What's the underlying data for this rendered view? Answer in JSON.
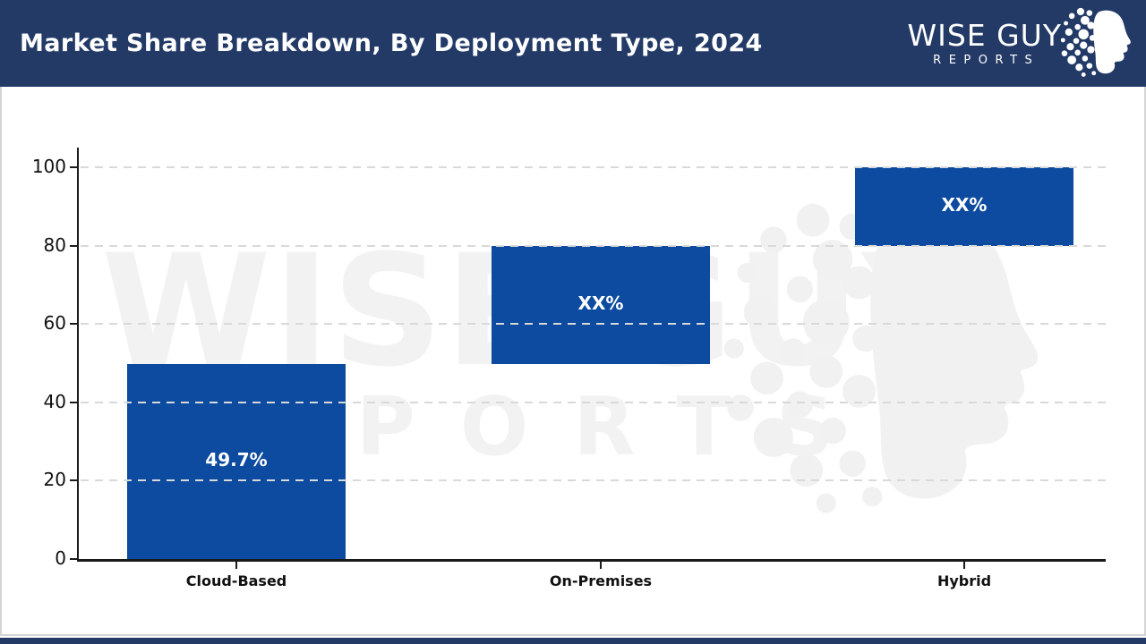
{
  "header": {
    "title": "Market Share Breakdown, By Deployment Type, 2024",
    "logo": {
      "brand_line1": "WISE GUY",
      "brand_line2": "REPORTS",
      "face_icon": "dotted-head-profile"
    }
  },
  "watermark": {
    "line1": "WISE GUY",
    "line2": "REPORTS",
    "face_icon": "dotted-head-profile"
  },
  "colors": {
    "header_bg": "#233a67",
    "bar_fill": "#0c4ba0",
    "bar_label": "#ffffff",
    "grid": "#d9d9d9",
    "axis": "#1a1a1a",
    "watermark": "#f2f2f2"
  },
  "chart_data": {
    "type": "bar",
    "subtype": "waterfall-stacked-breakdown",
    "title": "Market Share Breakdown, By Deployment Type, 2024",
    "categories": [
      "Cloud-Based",
      "On-Premises",
      "Hybrid"
    ],
    "bars": [
      {
        "category": "Cloud-Based",
        "start": 0,
        "end": 49.7,
        "label": "49.7%"
      },
      {
        "category": "On-Premises",
        "start": 49.7,
        "end": 80,
        "label": "XX%"
      },
      {
        "category": "Hybrid",
        "start": 80,
        "end": 100,
        "label": "XX%"
      }
    ],
    "ylim": [
      0,
      100
    ],
    "yticks": [
      0,
      20,
      40,
      60,
      80,
      100
    ],
    "xlabel": "",
    "ylabel": "",
    "grid": "dashed-horizontal",
    "legend": "none"
  }
}
